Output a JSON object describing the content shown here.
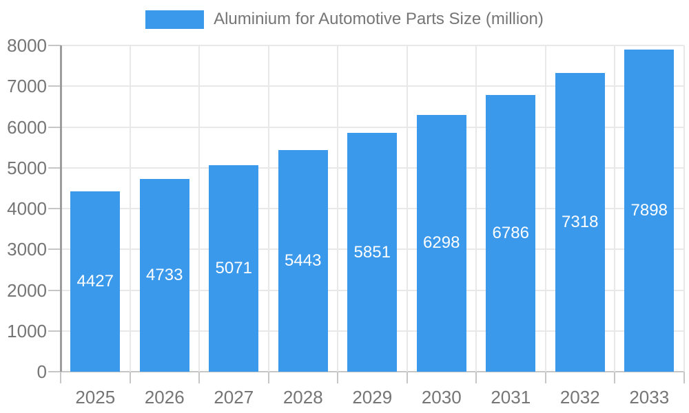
{
  "chart_data": {
    "type": "bar",
    "title": "Aluminium for Automotive Parts Size (million)",
    "categories": [
      "2025",
      "2026",
      "2027",
      "2028",
      "2029",
      "2030",
      "2031",
      "2032",
      "2033"
    ],
    "values": [
      4427,
      4733,
      5071,
      5443,
      5851,
      6298,
      6786,
      7318,
      7898
    ],
    "xlabel": "",
    "ylabel": "",
    "ylim": [
      0,
      8000
    ],
    "yticks": [
      0,
      1000,
      2000,
      3000,
      4000,
      5000,
      6000,
      7000,
      8000
    ],
    "grid": true,
    "legend_position": "top"
  },
  "colors": {
    "bar_blue": "#3B99EC",
    "value_label": "#FFFFFF",
    "axis_text": "#757575",
    "gridline": "#E8E8E8",
    "tick": "#C6C6C6",
    "axis_line": "#9C9C9C",
    "background": "#FFFFFF"
  }
}
